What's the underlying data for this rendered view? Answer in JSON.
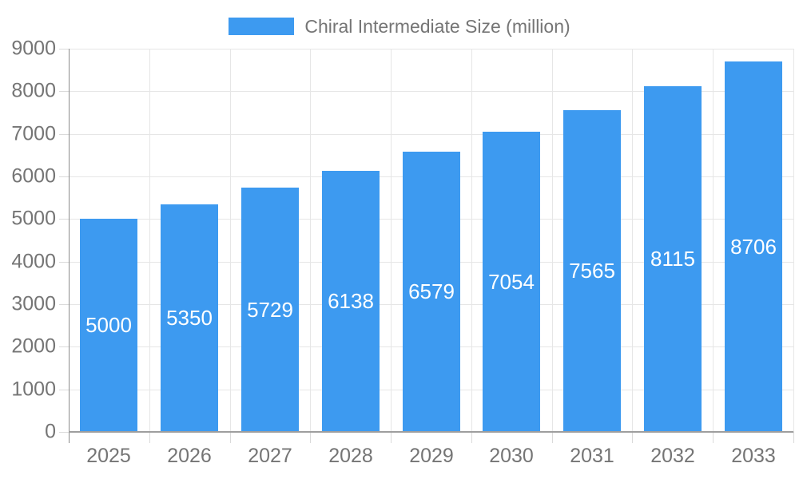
{
  "chart_data": {
    "type": "bar",
    "title": "",
    "legend": "Chiral Intermediate Size (million)",
    "legend_position": "top-center",
    "categories": [
      "2025",
      "2026",
      "2027",
      "2028",
      "2029",
      "2030",
      "2031",
      "2032",
      "2033"
    ],
    "values": [
      5000,
      5350,
      5729,
      6138,
      6579,
      7054,
      7565,
      8115,
      8706
    ],
    "xlabel": "",
    "ylabel": "",
    "ylim": [
      0,
      9000
    ],
    "ytick_step": 1000,
    "ytick_labels": [
      "0",
      "1000",
      "2000",
      "3000",
      "4000",
      "5000",
      "6000",
      "7000",
      "8000",
      "9000"
    ],
    "grid": "horizontal-lines-and-vertical-category-boundaries",
    "bar_value_labels": "inside-bar-centered-white",
    "colors": {
      "bar": "#3D9AF0",
      "bar_value_text": "#ffffff",
      "axis_text": "#757575",
      "gridline": "#E6E6E6",
      "tick": "#DADADA",
      "axis_line": "#9E9E9E",
      "y_axis_line": "#8C8C8C",
      "background": "#ffffff"
    }
  }
}
